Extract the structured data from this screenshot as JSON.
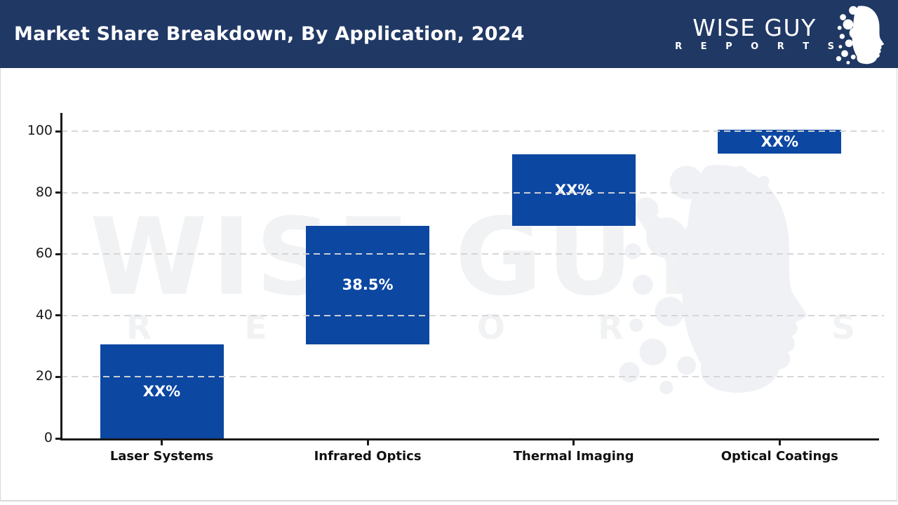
{
  "header": {
    "title": "Market Share Breakdown, By Application, 2024",
    "logo": {
      "line1": "WISE GUY",
      "line2": "R E P O R T S"
    }
  },
  "watermark": {
    "line1": "WISE GUY",
    "line2": "R E P O R T S"
  },
  "chart_data": {
    "type": "bar",
    "subtype": "waterfall-floating-bars",
    "title": "Market Share Breakdown, By Application, 2024",
    "categories": [
      "Laser Systems",
      "Infrared Optics",
      "Thermal Imaging",
      "Optical Coatings"
    ],
    "segments": [
      {
        "category": "Laser Systems",
        "start": 0,
        "end": 30.6,
        "label": "XX%"
      },
      {
        "category": "Infrared Optics",
        "start": 30.6,
        "end": 69.2,
        "label": "38.5%"
      },
      {
        "category": "Thermal Imaging",
        "start": 69.2,
        "end": 92.5,
        "label": "XX%"
      },
      {
        "category": "Optical Coatings",
        "start": 92.6,
        "end": 100.5,
        "label": "XX%"
      }
    ],
    "xlabel": "",
    "ylabel": "",
    "y_ticks": [
      0,
      20,
      40,
      60,
      80,
      100
    ],
    "ylim": [
      0,
      106
    ],
    "grid": "horizontal-dashed",
    "legend": "none",
    "bar_color": "#0c47a1",
    "bar_label_color": "#ffffff"
  },
  "colors": {
    "header_bg": "#203864",
    "bar": "#0c47a1",
    "grid": "#d5d5d5",
    "axis": "#1a1a1a",
    "watermark": "#f1f2f4"
  }
}
